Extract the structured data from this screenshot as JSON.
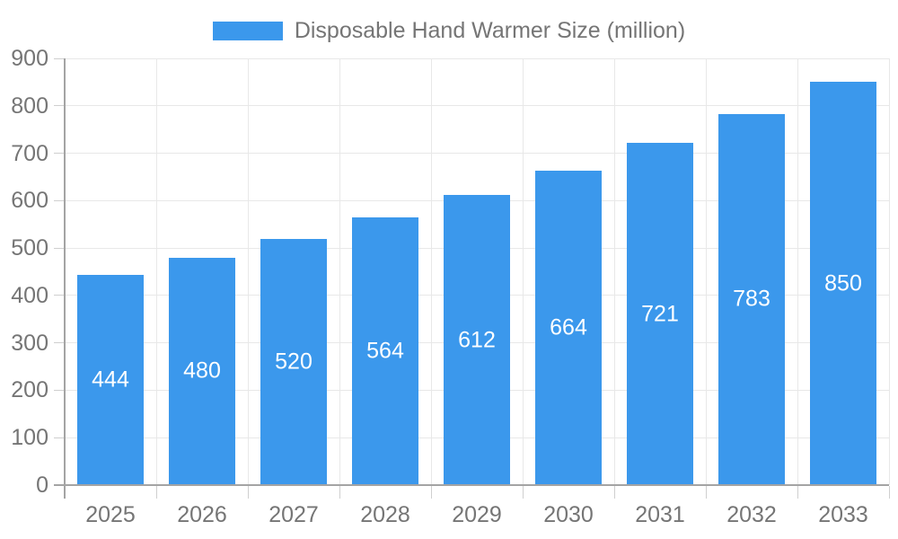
{
  "legend": {
    "label": "Disposable Hand Warmer Size (million)"
  },
  "colors": {
    "bar": "#3b98ec",
    "axis": "#a4a4a4",
    "grid": "#e8e8e8",
    "tick": "#cfcfcf",
    "label_text": "#757575",
    "value_text": "#ffffff",
    "background": "#ffffff"
  },
  "chart_data": {
    "type": "bar",
    "title": "",
    "categories": [
      "2025",
      "2026",
      "2027",
      "2028",
      "2029",
      "2030",
      "2031",
      "2032",
      "2033"
    ],
    "values": [
      444,
      480,
      520,
      564,
      612,
      664,
      721,
      783,
      850
    ],
    "series": [
      {
        "name": "Disposable Hand Warmer Size (million)",
        "values": [
          444,
          480,
          520,
          564,
          612,
          664,
          721,
          783,
          850
        ]
      }
    ],
    "xlabel": "",
    "ylabel": "",
    "ylim": [
      0,
      900
    ],
    "ytick_step": 100,
    "ytick_labels": [
      "0",
      "100",
      "200",
      "300",
      "400",
      "500",
      "600",
      "700",
      "800",
      "900"
    ],
    "grid": true,
    "legend_position": "top-center",
    "value_label_position": "inside-center"
  }
}
